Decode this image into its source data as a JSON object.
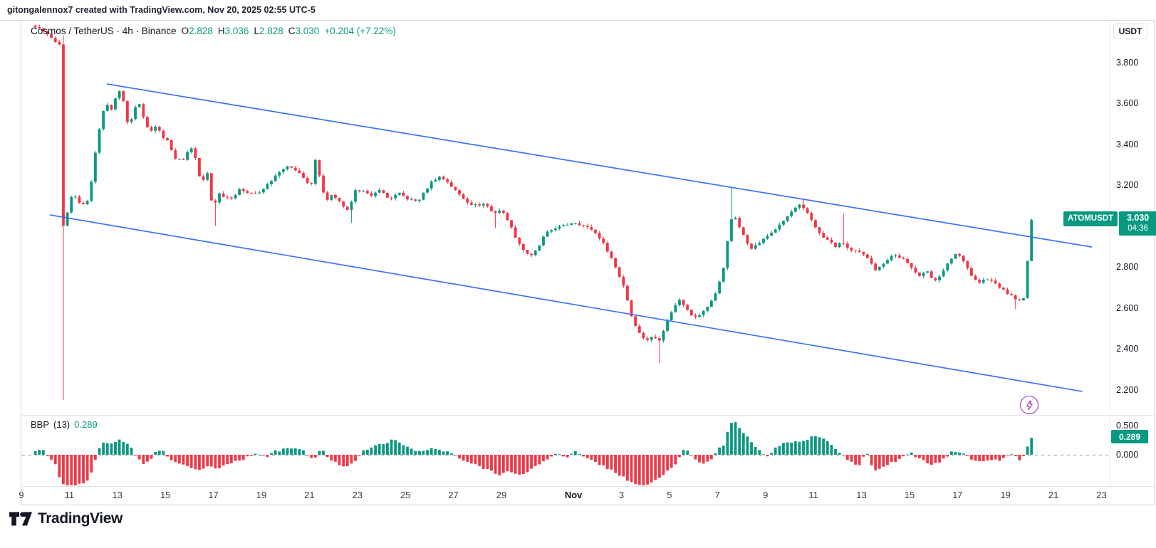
{
  "attribution": "gitongalennox7 created with TradingView.com, Nov 20, 2025 02:55 UTC-5",
  "header": {
    "title": "Cosmos / TetherUS · 4h · Binance",
    "ohlc": {
      "open_label": "O",
      "open": "2.828",
      "high_label": "H",
      "high": "3.036",
      "low_label": "L",
      "low": "2.828",
      "close_label": "C",
      "close": "3.030",
      "change": "+0.204 (+7.22%)"
    }
  },
  "price_axis": {
    "currency_button": "USDT",
    "ticks": [
      {
        "label": "3.800",
        "price": 3.8
      },
      {
        "label": "3.600",
        "price": 3.6
      },
      {
        "label": "3.400",
        "price": 3.4
      },
      {
        "label": "3.200",
        "price": 3.2
      },
      {
        "label": "2.800",
        "price": 2.8
      },
      {
        "label": "2.600",
        "price": 2.6
      },
      {
        "label": "2.400",
        "price": 2.4
      },
      {
        "label": "2.200",
        "price": 2.2
      }
    ],
    "last_price_badge": {
      "symbol": "ATOMUSDT",
      "price": "3.030",
      "countdown": "04:36"
    }
  },
  "indicator": {
    "name": "BBP",
    "params": "(13)",
    "value": "0.289",
    "ticks": [
      {
        "label": "0.500",
        "value": 0.5
      },
      {
        "label": "0.000",
        "value": 0.0
      }
    ],
    "badge": "0.289"
  },
  "time_axis": {
    "labels": [
      {
        "text": "9",
        "day": 0
      },
      {
        "text": "11",
        "day": 2
      },
      {
        "text": "13",
        "day": 4
      },
      {
        "text": "15",
        "day": 6
      },
      {
        "text": "17",
        "day": 8
      },
      {
        "text": "19",
        "day": 10
      },
      {
        "text": "21",
        "day": 12
      },
      {
        "text": "23",
        "day": 14
      },
      {
        "text": "25",
        "day": 16
      },
      {
        "text": "27",
        "day": 18
      },
      {
        "text": "29",
        "day": 20
      },
      {
        "text": "Nov",
        "day": 23,
        "emphasis": true
      },
      {
        "text": "3",
        "day": 25
      },
      {
        "text": "5",
        "day": 27
      },
      {
        "text": "7",
        "day": 29
      },
      {
        "text": "9",
        "day": 31
      },
      {
        "text": "11",
        "day": 33
      },
      {
        "text": "13",
        "day": 35
      },
      {
        "text": "15",
        "day": 37
      },
      {
        "text": "17",
        "day": 39
      },
      {
        "text": "19",
        "day": 41
      },
      {
        "text": "21",
        "day": 43
      },
      {
        "text": "23",
        "day": 45
      }
    ]
  },
  "footer": {
    "logo_text": "TradingView"
  },
  "colors": {
    "up": "#089981",
    "down": "#f23645",
    "channel_line": "#3f72f5",
    "badge": "#089981",
    "flash_icon": "#a02bb5",
    "zero_dash": "#9598a1",
    "border": "#d1d4dc",
    "separator": "#e0e3eb",
    "text": "#131722"
  },
  "chart_data": {
    "type": "candlestick",
    "symbol": "ATOMUSDT",
    "exchange": "Binance",
    "timeframe": "4h",
    "day0_date": "Oct 9",
    "visible_range_days": [
      0,
      45
    ],
    "price_ticks": [
      3.8,
      3.6,
      3.4,
      3.2,
      3.0,
      2.8,
      2.6,
      2.4,
      2.2
    ],
    "last_candle": {
      "open": 2.828,
      "high": 3.036,
      "low": 2.828,
      "close": 3.03
    },
    "price_path_anchors": [
      [
        0.5,
        3.98
      ],
      [
        0.9,
        3.96
      ],
      [
        1.2,
        3.93
      ],
      [
        1.45,
        3.9
      ],
      [
        1.7,
        3.88
      ],
      [
        1.78,
        2.98
      ],
      [
        1.95,
        3.04
      ],
      [
        2.2,
        3.16
      ],
      [
        2.45,
        3.12
      ],
      [
        2.7,
        3.1
      ],
      [
        2.9,
        3.14
      ],
      [
        3.1,
        3.3
      ],
      [
        3.3,
        3.46
      ],
      [
        3.5,
        3.56
      ],
      [
        3.65,
        3.6
      ],
      [
        3.8,
        3.56
      ],
      [
        4.0,
        3.62
      ],
      [
        4.2,
        3.67
      ],
      [
        4.4,
        3.58
      ],
      [
        4.55,
        3.47
      ],
      [
        4.75,
        3.56
      ],
      [
        4.95,
        3.62
      ],
      [
        5.15,
        3.54
      ],
      [
        5.4,
        3.46
      ],
      [
        5.7,
        3.49
      ],
      [
        5.95,
        3.44
      ],
      [
        6.2,
        3.41
      ],
      [
        6.5,
        3.33
      ],
      [
        6.8,
        3.32
      ],
      [
        7.05,
        3.37
      ],
      [
        7.25,
        3.39
      ],
      [
        7.45,
        3.25
      ],
      [
        7.65,
        3.22
      ],
      [
        7.85,
        3.26
      ],
      [
        8.05,
        3.08
      ],
      [
        8.3,
        3.16
      ],
      [
        8.6,
        3.14
      ],
      [
        8.9,
        3.14
      ],
      [
        9.2,
        3.18
      ],
      [
        9.6,
        3.16
      ],
      [
        10.0,
        3.16
      ],
      [
        10.4,
        3.21
      ],
      [
        10.8,
        3.26
      ],
      [
        11.2,
        3.29
      ],
      [
        11.6,
        3.27
      ],
      [
        11.9,
        3.22
      ],
      [
        12.15,
        3.19
      ],
      [
        12.35,
        3.34
      ],
      [
        12.55,
        3.22
      ],
      [
        12.75,
        3.12
      ],
      [
        13.0,
        3.15
      ],
      [
        13.4,
        3.11
      ],
      [
        13.7,
        3.07
      ],
      [
        14.0,
        3.17
      ],
      [
        14.3,
        3.18
      ],
      [
        14.65,
        3.14
      ],
      [
        15.0,
        3.18
      ],
      [
        15.4,
        3.13
      ],
      [
        15.8,
        3.16
      ],
      [
        16.2,
        3.13
      ],
      [
        16.6,
        3.12
      ],
      [
        16.9,
        3.17
      ],
      [
        17.2,
        3.22
      ],
      [
        17.5,
        3.24
      ],
      [
        17.8,
        3.22
      ],
      [
        18.1,
        3.18
      ],
      [
        18.45,
        3.14
      ],
      [
        18.75,
        3.11
      ],
      [
        19.05,
        3.1
      ],
      [
        19.4,
        3.11
      ],
      [
        19.75,
        3.06
      ],
      [
        20.05,
        3.08
      ],
      [
        20.35,
        3.03
      ],
      [
        20.65,
        2.95
      ],
      [
        20.95,
        2.89
      ],
      [
        21.3,
        2.85
      ],
      [
        21.6,
        2.89
      ],
      [
        21.9,
        2.96
      ],
      [
        22.3,
        2.99
      ],
      [
        22.7,
        3.0
      ],
      [
        23.1,
        3.02
      ],
      [
        23.5,
        3.0
      ],
      [
        23.9,
        2.98
      ],
      [
        24.25,
        2.93
      ],
      [
        24.6,
        2.86
      ],
      [
        24.9,
        2.78
      ],
      [
        25.2,
        2.7
      ],
      [
        25.5,
        2.56
      ],
      [
        25.8,
        2.48
      ],
      [
        26.1,
        2.44
      ],
      [
        26.4,
        2.46
      ],
      [
        26.65,
        2.44
      ],
      [
        26.9,
        2.51
      ],
      [
        27.2,
        2.59
      ],
      [
        27.5,
        2.64
      ],
      [
        27.8,
        2.6
      ],
      [
        28.1,
        2.55
      ],
      [
        28.4,
        2.57
      ],
      [
        28.7,
        2.61
      ],
      [
        29.0,
        2.67
      ],
      [
        29.3,
        2.77
      ],
      [
        29.55,
        2.97
      ],
      [
        29.75,
        3.07
      ],
      [
        29.95,
        3.0
      ],
      [
        30.2,
        2.95
      ],
      [
        30.45,
        2.89
      ],
      [
        30.75,
        2.91
      ],
      [
        31.05,
        2.94
      ],
      [
        31.35,
        2.97
      ],
      [
        31.65,
        3.0
      ],
      [
        31.95,
        3.04
      ],
      [
        32.25,
        3.08
      ],
      [
        32.5,
        3.1
      ],
      [
        32.8,
        3.07
      ],
      [
        33.1,
        3.01
      ],
      [
        33.4,
        2.95
      ],
      [
        33.7,
        2.93
      ],
      [
        34.0,
        2.9
      ],
      [
        34.3,
        2.92
      ],
      [
        34.6,
        2.88
      ],
      [
        35.0,
        2.87
      ],
      [
        35.4,
        2.84
      ],
      [
        35.7,
        2.78
      ],
      [
        36.0,
        2.82
      ],
      [
        36.4,
        2.86
      ],
      [
        36.8,
        2.84
      ],
      [
        37.2,
        2.79
      ],
      [
        37.5,
        2.76
      ],
      [
        37.8,
        2.78
      ],
      [
        38.1,
        2.73
      ],
      [
        38.45,
        2.77
      ],
      [
        38.75,
        2.83
      ],
      [
        39.05,
        2.87
      ],
      [
        39.35,
        2.83
      ],
      [
        39.65,
        2.76
      ],
      [
        39.95,
        2.72
      ],
      [
        40.25,
        2.74
      ],
      [
        40.55,
        2.73
      ],
      [
        40.85,
        2.7
      ],
      [
        41.15,
        2.67
      ],
      [
        41.45,
        2.65
      ],
      [
        41.7,
        2.63
      ],
      [
        41.83,
        2.64
      ],
      [
        41.96,
        2.83
      ],
      [
        42.05,
        2.828
      ],
      [
        42.17,
        3.03
      ]
    ],
    "wick_events": [
      {
        "day": 1.72,
        "high": 3.93,
        "low": 2.15
      },
      {
        "day": 8.05,
        "low": 3.0
      },
      {
        "day": 13.7,
        "low": 3.015
      },
      {
        "day": 19.8,
        "low": 2.99
      },
      {
        "day": 26.6,
        "low": 2.33
      },
      {
        "day": 29.55,
        "high": 3.19
      },
      {
        "day": 32.5,
        "high": 3.135
      },
      {
        "day": 34.25,
        "high": 3.06
      },
      {
        "day": 41.4,
        "low": 2.595
      }
    ],
    "channel": {
      "upper": [
        [
          3.56,
          3.694
        ],
        [
          44.6,
          2.897
        ]
      ],
      "lower": [
        [
          1.19,
          3.054
        ],
        [
          44.2,
          2.191
        ]
      ]
    },
    "bbp": {
      "type": "bar",
      "name": "BBP",
      "length": 13,
      "last": 0.289,
      "axis_ticks": [
        0.5,
        0.0
      ],
      "anchors": [
        [
          0.5,
          0.05
        ],
        [
          0.9,
          0.08
        ],
        [
          1.15,
          -0.04
        ],
        [
          1.4,
          -0.12
        ],
        [
          1.65,
          -0.45
        ],
        [
          1.9,
          -0.55
        ],
        [
          2.2,
          -0.52
        ],
        [
          2.5,
          -0.5
        ],
        [
          2.8,
          -0.42
        ],
        [
          3.0,
          -0.2
        ],
        [
          3.2,
          0.1
        ],
        [
          3.5,
          0.22
        ],
        [
          3.8,
          0.18
        ],
        [
          4.1,
          0.26
        ],
        [
          4.4,
          0.18
        ],
        [
          4.6,
          0.1
        ],
        [
          4.85,
          -0.06
        ],
        [
          5.1,
          -0.16
        ],
        [
          5.35,
          -0.12
        ],
        [
          5.6,
          0.04
        ],
        [
          5.9,
          0.07
        ],
        [
          6.2,
          -0.1
        ],
        [
          6.6,
          -0.17
        ],
        [
          7.0,
          -0.2
        ],
        [
          7.4,
          -0.26
        ],
        [
          7.8,
          -0.19
        ],
        [
          8.2,
          -0.24
        ],
        [
          8.6,
          -0.14
        ],
        [
          9.0,
          -0.1
        ],
        [
          9.4,
          -0.05
        ],
        [
          9.8,
          0.04
        ],
        [
          10.2,
          -0.04
        ],
        [
          10.6,
          0.06
        ],
        [
          11.0,
          0.1
        ],
        [
          11.4,
          0.12
        ],
        [
          11.8,
          0.05
        ],
        [
          12.2,
          -0.08
        ],
        [
          12.5,
          0.1
        ],
        [
          12.8,
          -0.06
        ],
        [
          13.1,
          -0.14
        ],
        [
          13.5,
          -0.2
        ],
        [
          13.9,
          -0.1
        ],
        [
          14.3,
          0.08
        ],
        [
          14.7,
          0.14
        ],
        [
          15.1,
          0.2
        ],
        [
          15.5,
          0.25
        ],
        [
          15.9,
          0.17
        ],
        [
          16.3,
          0.1
        ],
        [
          16.7,
          0.05
        ],
        [
          17.1,
          0.11
        ],
        [
          17.5,
          0.07
        ],
        [
          17.9,
          0.03
        ],
        [
          18.3,
          -0.08
        ],
        [
          18.7,
          -0.14
        ],
        [
          19.1,
          -0.2
        ],
        [
          19.5,
          -0.26
        ],
        [
          19.9,
          -0.33
        ],
        [
          20.3,
          -0.28
        ],
        [
          20.7,
          -0.36
        ],
        [
          21.1,
          -0.28
        ],
        [
          21.5,
          -0.17
        ],
        [
          21.9,
          -0.09
        ],
        [
          22.3,
          0.04
        ],
        [
          22.7,
          -0.04
        ],
        [
          23.1,
          0.05
        ],
        [
          23.5,
          -0.06
        ],
        [
          23.9,
          -0.12
        ],
        [
          24.3,
          -0.2
        ],
        [
          24.7,
          -0.29
        ],
        [
          25.1,
          -0.38
        ],
        [
          25.5,
          -0.5
        ],
        [
          25.9,
          -0.54
        ],
        [
          26.3,
          -0.46
        ],
        [
          26.7,
          -0.36
        ],
        [
          27.0,
          -0.24
        ],
        [
          27.3,
          -0.14
        ],
        [
          27.6,
          0.08
        ],
        [
          27.85,
          0.05
        ],
        [
          28.1,
          -0.1
        ],
        [
          28.4,
          -0.14
        ],
        [
          28.7,
          -0.11
        ],
        [
          29.0,
          0.1
        ],
        [
          29.25,
          0.17
        ],
        [
          29.5,
          0.52
        ],
        [
          29.65,
          0.58
        ],
        [
          29.85,
          0.5
        ],
        [
          30.05,
          0.37
        ],
        [
          30.25,
          0.29
        ],
        [
          30.45,
          0.21
        ],
        [
          30.65,
          0.12
        ],
        [
          30.9,
          0.02
        ],
        [
          31.15,
          -0.05
        ],
        [
          31.45,
          0.14
        ],
        [
          31.8,
          0.19
        ],
        [
          32.2,
          0.24
        ],
        [
          32.5,
          0.21
        ],
        [
          32.8,
          0.27
        ],
        [
          33.1,
          0.33
        ],
        [
          33.4,
          0.27
        ],
        [
          33.7,
          0.19
        ],
        [
          34.0,
          0.06
        ],
        [
          34.3,
          -0.03
        ],
        [
          34.6,
          -0.14
        ],
        [
          34.9,
          -0.19
        ],
        [
          35.2,
          0.07
        ],
        [
          35.5,
          -0.28
        ],
        [
          35.8,
          -0.23
        ],
        [
          36.2,
          -0.14
        ],
        [
          36.6,
          -0.09
        ],
        [
          37.0,
          0.05
        ],
        [
          37.3,
          -0.05
        ],
        [
          37.6,
          -0.11
        ],
        [
          38.0,
          -0.17
        ],
        [
          38.4,
          -0.09
        ],
        [
          38.8,
          0.07
        ],
        [
          39.2,
          0.05
        ],
        [
          39.6,
          -0.08
        ],
        [
          40.0,
          -0.14
        ],
        [
          40.4,
          -0.07
        ],
        [
          40.8,
          -0.11
        ],
        [
          41.2,
          0.04
        ],
        [
          41.6,
          -0.1
        ],
        [
          41.85,
          0.06
        ],
        [
          42.1,
          0.289
        ]
      ]
    }
  }
}
